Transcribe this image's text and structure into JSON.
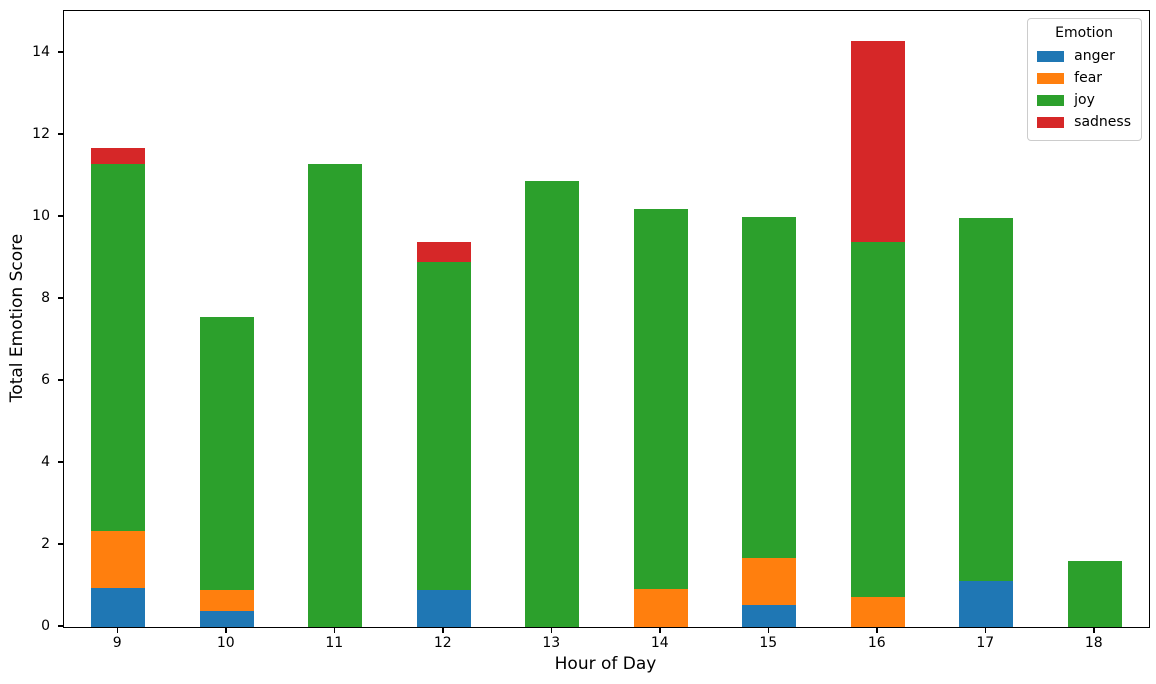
{
  "chart_data": {
    "type": "bar",
    "stacked": true,
    "title": "",
    "xlabel": "Hour of Day",
    "ylabel": "Total Emotion Score",
    "categories": [
      "9",
      "10",
      "11",
      "12",
      "13",
      "14",
      "15",
      "16",
      "17",
      "18"
    ],
    "series": [
      {
        "name": "anger",
        "color": "#1f77b4",
        "values": [
          0.95,
          0.38,
          0,
          0.9,
          0,
          0,
          0.53,
          0,
          1.12,
          0
        ]
      },
      {
        "name": "fear",
        "color": "#ff7f0e",
        "values": [
          1.4,
          0.52,
          0,
          0,
          0,
          0.92,
          1.15,
          0.72,
          0,
          0
        ]
      },
      {
        "name": "joy",
        "color": "#2ca02c",
        "values": [
          8.95,
          6.65,
          11.3,
          8.0,
          10.87,
          9.28,
          8.32,
          8.66,
          8.86,
          1.61
        ]
      },
      {
        "name": "sadness",
        "color": "#d62728",
        "values": [
          0.37,
          0,
          0,
          0.5,
          0,
          0,
          0,
          4.9,
          0,
          0
        ]
      }
    ],
    "totals": [
      11.67,
      7.55,
      11.3,
      9.4,
      10.87,
      10.2,
      10.0,
      14.28,
      9.98,
      1.61
    ],
    "ylim": [
      0,
      15.02
    ],
    "yticks": [
      0,
      2,
      4,
      6,
      8,
      10,
      12,
      14
    ],
    "bar_width_fraction": 0.5,
    "grid": false,
    "legend": {
      "title": "Emotion",
      "position": "upper right",
      "entries": [
        "anger",
        "fear",
        "joy",
        "sadness"
      ]
    },
    "colors": {
      "anger": "#1f77b4",
      "fear": "#ff7f0e",
      "joy": "#2ca02c",
      "sadness": "#d62728",
      "axis": "#000000",
      "background": "#ffffff",
      "legend_border": "#cccccc"
    }
  }
}
